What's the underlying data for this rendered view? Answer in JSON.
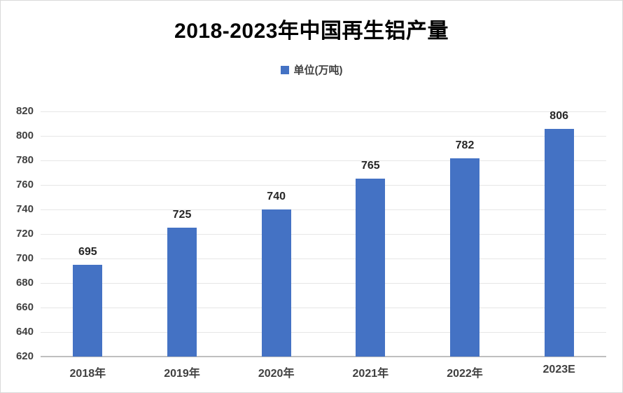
{
  "chart_data": {
    "type": "bar",
    "title": "2018-2023年中国再生铝产量",
    "legend": {
      "label": "单位(万吨)",
      "position": "top"
    },
    "categories": [
      "2018年",
      "2019年",
      "2020年",
      "2021年",
      "2022年",
      "2023E"
    ],
    "series": [
      {
        "name": "单位(万吨)",
        "values": [
          695,
          725,
          740,
          765,
          782,
          806
        ]
      }
    ],
    "value_labels_shown": true,
    "ylim": [
      620,
      820
    ],
    "ytick_step": 20,
    "yticks": [
      620,
      640,
      660,
      680,
      700,
      720,
      740,
      760,
      780,
      800,
      820
    ],
    "grid": true,
    "xlabel": "",
    "ylabel": ""
  },
  "colors": {
    "bar_fill": "#4472c4",
    "gridline": "#e6e6e6",
    "axis_line": "#bfbfbf",
    "tick_text": "#404040",
    "value_text": "#262626",
    "title_text": "#000000",
    "frame_border": "#d9d9d9",
    "background": "#ffffff"
  }
}
